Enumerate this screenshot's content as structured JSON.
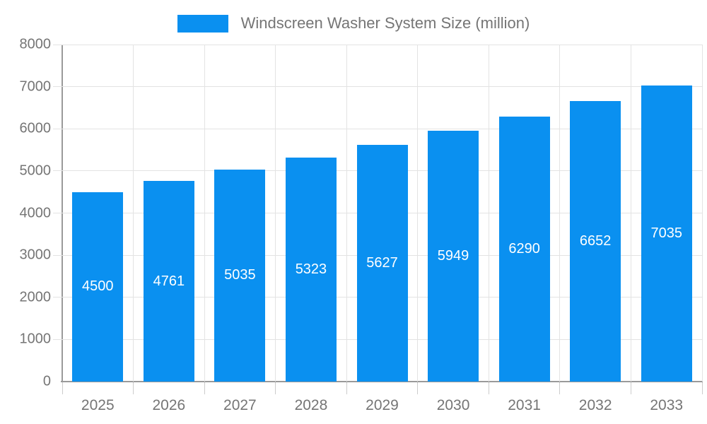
{
  "chart_data": {
    "type": "bar",
    "title": "Windscreen Washer System Size (million)",
    "categories": [
      "2025",
      "2026",
      "2027",
      "2028",
      "2029",
      "2030",
      "2031",
      "2032",
      "2033"
    ],
    "series": [
      {
        "name": "Windscreen Washer System Size (million)",
        "values": [
          4500,
          4761,
          5035,
          5323,
          5627,
          5949,
          6290,
          6652,
          7035
        ]
      }
    ],
    "xlabel": "",
    "ylabel": "",
    "ylim": [
      0,
      8000
    ],
    "yticks": [
      0,
      1000,
      2000,
      3000,
      4000,
      5000,
      6000,
      7000,
      8000
    ],
    "grid": true,
    "legend_position": "top",
    "value_labels_position": "inside-center",
    "colors": {
      "bar": "#0a90f0",
      "value_label": "#ffffff",
      "tick_text": "#757575",
      "gridline": "#e3e3e3",
      "axis_line": "#9a9a9a",
      "axis_tick": "#cccccc",
      "background": "#ffffff"
    }
  }
}
